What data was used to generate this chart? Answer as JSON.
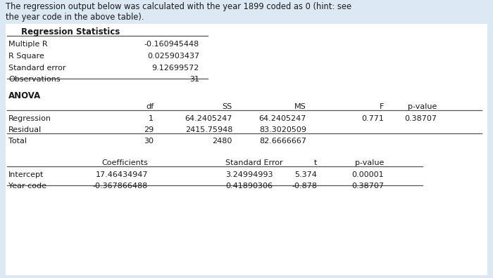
{
  "intro_text_line1": "The regression output below was calculated with the year 1899 coded as 0 (hint: see",
  "intro_text_line2": "the year code in the above table).",
  "background_color": "#dce9f5",
  "table_background": "#ffffff",
  "reg_stats_title": "Regression Statistics",
  "reg_stats_labels": [
    "Multiple R",
    "R Square",
    "Standard error",
    "Observations"
  ],
  "reg_stats_values": [
    "-0.160945448",
    "0.025903437",
    "9.12699572",
    "31"
  ],
  "anova_title": "ANOVA",
  "anova_headers": [
    "",
    "df",
    "SS",
    "MS",
    "F",
    "p-value"
  ],
  "anova_rows": [
    [
      "Regression",
      "1",
      "64.2405247",
      "64.2405247",
      "0.771",
      "0.38707"
    ],
    [
      "Residual",
      "29",
      "2415.75948",
      "83.3020509",
      "",
      ""
    ],
    [
      "Total",
      "30",
      "2480",
      "82.6666667",
      "",
      ""
    ]
  ],
  "coef_headers": [
    "",
    "Coefficients",
    "Standard Error",
    "t",
    "p-value"
  ],
  "coef_rows": [
    [
      "Intercept",
      "17.46434947",
      "3.24994993",
      "5.374",
      "0.00001"
    ],
    [
      "Year code",
      "-0.367866488",
      "0.41890306",
      "-0.878",
      "0.38707"
    ]
  ],
  "font_size": 8.0,
  "font_size_title": 8.5,
  "font_size_intro": 8.3
}
